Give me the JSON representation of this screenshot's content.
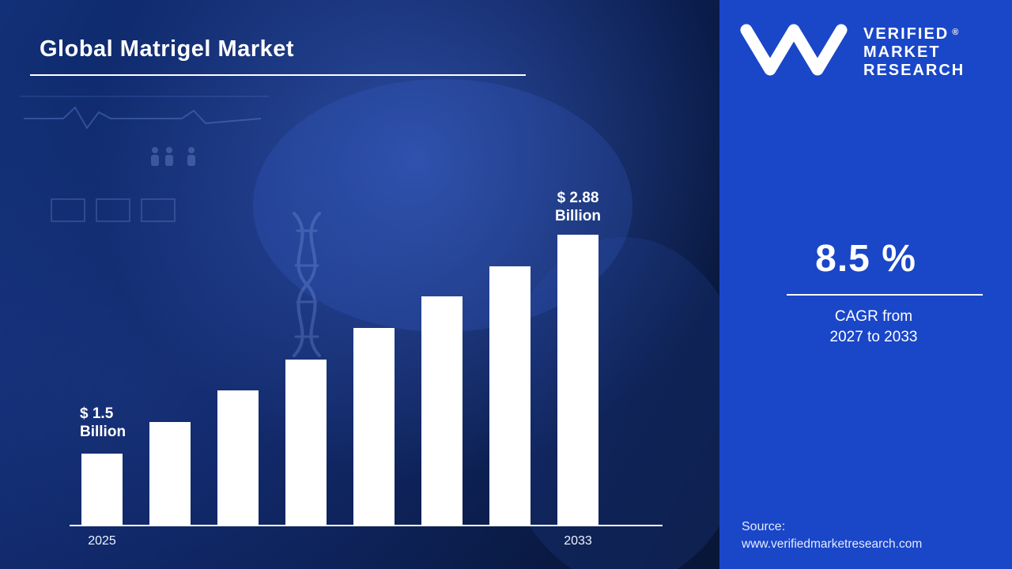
{
  "header": {
    "title": "Global Matrigel Market"
  },
  "chart_data": {
    "type": "bar",
    "n_bars": 8,
    "values": [
      1.5,
      1.7,
      1.9,
      2.09,
      2.29,
      2.49,
      2.68,
      2.88
    ],
    "unit": "$ Billion",
    "x_tick_labels": [
      "2025",
      "2033"
    ],
    "annotations": [
      {
        "bar_index": 0,
        "line1": "$ 1.5",
        "line2": "Billion"
      },
      {
        "bar_index": 7,
        "line1": "$ 2.88",
        "line2": "Billion"
      }
    ],
    "ylim": [
      1.05,
      2.88
    ],
    "bar_color": "#ffffff",
    "axis_line_color": "#ffffff",
    "grid": false,
    "legend": "none"
  },
  "panel": {
    "background_color": "#1a46c8",
    "logo": {
      "monogram": "VM",
      "registered_mark": "®",
      "name_line1": "VERIFIED",
      "name_line2": "MARKET",
      "name_line3": "RESEARCH"
    },
    "cagr": {
      "value": "8.5 %",
      "caption_line1": "CAGR from",
      "caption_line2": "2027 to 2033"
    },
    "source": {
      "label": "Source:",
      "url": "www.verifiedmarketresearch.com"
    }
  },
  "colors": {
    "panel_blue": "#1a46c8",
    "background_navy": "#0b2058",
    "text_white": "#ffffff"
  }
}
